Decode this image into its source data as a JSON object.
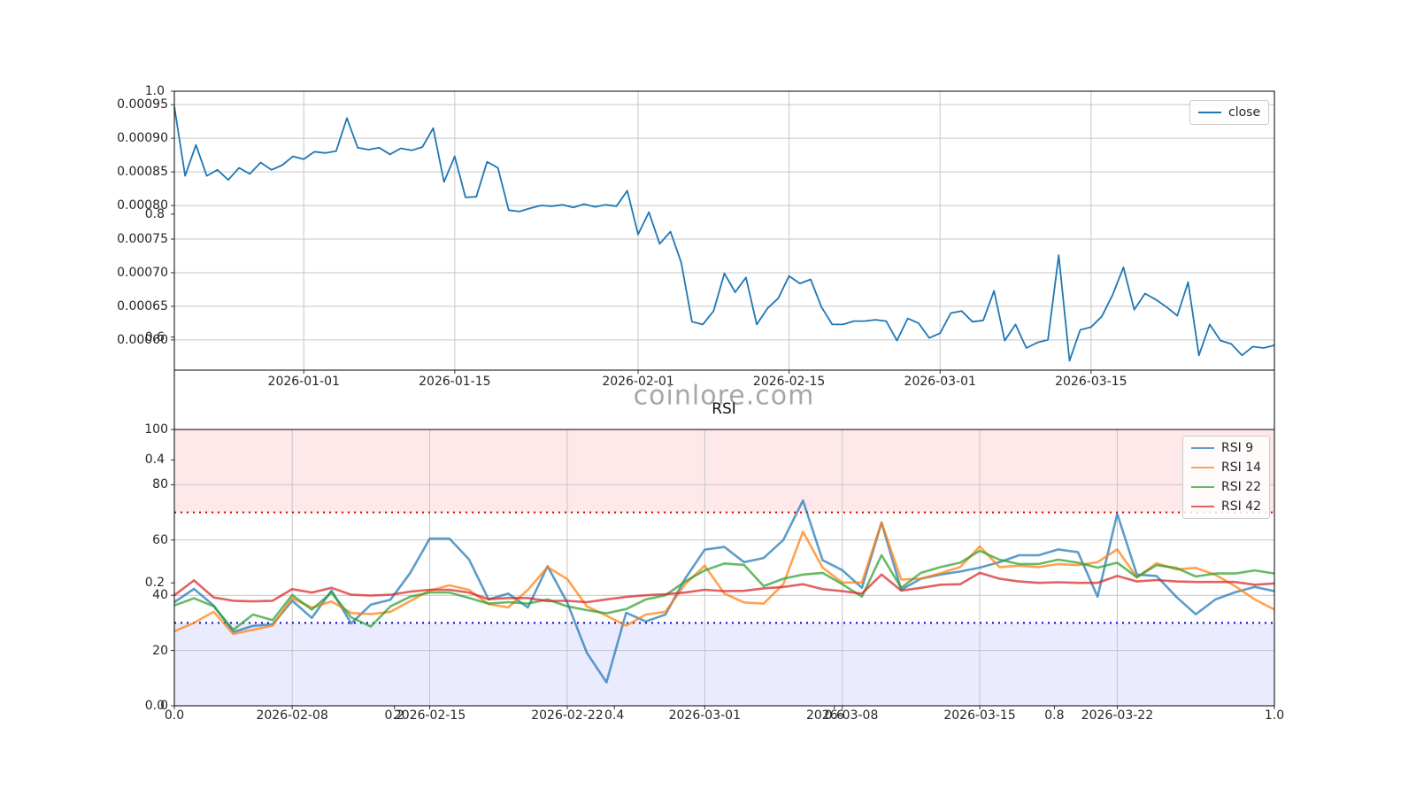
{
  "watermark": "coinlore.com",
  "overlay_axis": {
    "x_tick_labels": [
      "0.0",
      "0.2",
      "0.4",
      "0.6",
      "0.8",
      "1.0"
    ],
    "y_tick_labels": [
      "1.0",
      "0.8",
      "0.6",
      "0.4",
      "0.2",
      "0.0"
    ]
  },
  "chart_data": [
    {
      "type": "line",
      "title": "",
      "x_start": "2025-12-20",
      "x_interval": "daily",
      "x_tick_labels": [
        "2026-01-01",
        "2026-01-15",
        "2026-02-01",
        "2026-02-15",
        "2026-03-01",
        "2026-03-15"
      ],
      "x_tick_index": [
        12,
        26,
        43,
        57,
        71,
        85
      ],
      "y_tick_labels": [
        "0.00060",
        "0.00065",
        "0.00070",
        "0.00075",
        "0.00080",
        "0.00085",
        "0.00090",
        "0.00095"
      ],
      "y_tick_values": [
        0.0006,
        0.00065,
        0.0007,
        0.00075,
        0.0008,
        0.00085,
        0.0009,
        0.00095
      ],
      "ylim": [
        0.000555,
        0.00097
      ],
      "grid": true,
      "legend_position": "upper right",
      "series": [
        {
          "name": "close",
          "color": "#1f77b4",
          "opacity": 1,
          "width": 1.8,
          "values": [
            0.000947,
            0.000844,
            0.00089,
            0.000844,
            0.000853,
            0.000838,
            0.000856,
            0.000847,
            0.000864,
            0.000853,
            0.00086,
            0.000873,
            0.000869,
            0.00088,
            0.000878,
            0.000881,
            0.00093,
            0.000886,
            0.000883,
            0.000886,
            0.000876,
            0.000885,
            0.000882,
            0.000887,
            0.000915,
            0.000835,
            0.000873,
            0.000812,
            0.000813,
            0.000865,
            0.000856,
            0.000793,
            0.000791,
            0.000796,
            0.0008,
            0.000799,
            0.000801,
            0.000797,
            0.000802,
            0.000798,
            0.000801,
            0.000799,
            0.000822,
            0.000757,
            0.00079,
            0.000743,
            0.000761,
            0.000715,
            0.000627,
            0.000623,
            0.000643,
            0.000699,
            0.000671,
            0.000693,
            0.000623,
            0.000647,
            0.000662,
            0.000695,
            0.000684,
            0.00069,
            0.000649,
            0.000623,
            0.000623,
            0.000628,
            0.000628,
            0.00063,
            0.000628,
            0.000599,
            0.000632,
            0.000625,
            0.000603,
            0.00061,
            0.00064,
            0.000643,
            0.000627,
            0.000629,
            0.000673,
            0.000599,
            0.000623,
            0.000588,
            0.000596,
            0.0006,
            0.000726,
            0.000569,
            0.000615,
            0.000619,
            0.000635,
            0.000667,
            0.000708,
            0.000645,
            0.000669,
            0.00066,
            0.000649,
            0.000636,
            0.000686,
            0.000577,
            0.000623,
            0.000599,
            0.000594,
            0.000577,
            0.00059,
            0.000588,
            0.000592
          ]
        }
      ]
    },
    {
      "type": "line",
      "title": "RSI",
      "x_start": "2026-02-02",
      "x_interval": "daily",
      "x_tick_labels": [
        "2026-02-08",
        "2026-02-15",
        "2026-02-22",
        "2026-03-01",
        "2026-03-08",
        "2026-03-15",
        "2026-03-22"
      ],
      "x_tick_index": [
        6,
        13,
        20,
        27,
        34,
        41,
        48
      ],
      "y_tick_labels": [
        "0",
        "20",
        "40",
        "60",
        "80",
        "100"
      ],
      "y_tick_values": [
        0,
        20,
        40,
        60,
        80,
        100
      ],
      "ylim": [
        0,
        100
      ],
      "grid": true,
      "overbought_level": 70,
      "oversold_level": 30,
      "bands": [
        {
          "from": 70,
          "to": 100,
          "color": "rgba(255,30,45,0.10)"
        },
        {
          "from": 0,
          "to": 30,
          "color": "rgba(55,55,255,0.10)"
        }
      ],
      "hlines": [
        {
          "y": 70,
          "color": "#d40000"
        },
        {
          "y": 30,
          "color": "#0000cc"
        }
      ],
      "legend_position": "upper right",
      "series": [
        {
          "name": "RSI 9",
          "color": "#1f77b4",
          "opacity": 0.72,
          "width": 2.6,
          "values": [
            37.5,
            42.3,
            36.3,
            26.7,
            28.9,
            29.5,
            38,
            31.8,
            41.7,
            29.8,
            36.6,
            38.4,
            48,
            60.5,
            60.5,
            53,
            38.5,
            40.6,
            35.6,
            50.5,
            37.4,
            19.2,
            8.5,
            33.7,
            30.5,
            33,
            46,
            56.5,
            57.5,
            52,
            53.5,
            60,
            74.3,
            52.7,
            49.1,
            42.7,
            66.3,
            42,
            46,
            47.5,
            48.6,
            50,
            52,
            54.5,
            54.5,
            56.6,
            55.6,
            39.5,
            69.5,
            47.5,
            47,
            39.5,
            33.1,
            38.5,
            41.1,
            43,
            41.5
          ]
        },
        {
          "name": "RSI 14",
          "color": "#ff7f0e",
          "opacity": 0.72,
          "width": 2.6,
          "values": [
            27,
            30,
            34,
            26,
            27.5,
            29,
            38.9,
            35.5,
            37.8,
            33.6,
            33.2,
            34,
            37.9,
            41.7,
            43.6,
            42,
            36.8,
            35.6,
            42,
            50.2,
            45.9,
            36,
            32.6,
            29,
            33,
            34,
            44,
            50.7,
            40.6,
            37.4,
            37,
            44,
            63,
            50,
            44.6,
            44.6,
            66.3,
            45.7,
            46,
            48,
            50.2,
            57.7,
            50.2,
            50.7,
            50.2,
            51.3,
            50.9,
            52,
            56.6,
            46.5,
            51.6,
            49.4,
            49.9,
            47.4,
            43.3,
            38.5,
            34.8
          ]
        },
        {
          "name": "RSI 22",
          "color": "#2ca02c",
          "opacity": 0.72,
          "width": 2.6,
          "values": [
            36.3,
            38.9,
            36,
            27.5,
            33,
            31,
            40.1,
            34.8,
            41,
            32,
            28.7,
            36,
            39.5,
            41,
            41,
            39,
            37,
            37.5,
            37,
            38.5,
            36,
            34.6,
            33.5,
            35,
            38.5,
            40,
            45,
            49,
            51.5,
            51,
            43.3,
            46,
            47.5,
            48.1,
            44,
            39.5,
            54.5,
            42.7,
            48.1,
            50.2,
            51.8,
            56.1,
            52.9,
            51.3,
            51.3,
            52.9,
            51.8,
            50,
            51.8,
            46.5,
            50.9,
            49.9,
            46.8,
            47.9,
            47.9,
            49,
            47.9
          ]
        },
        {
          "name": "RSI 42",
          "color": "#d62728",
          "opacity": 0.72,
          "width": 2.6,
          "values": [
            40,
            45.4,
            39.2,
            38,
            37.8,
            38,
            42.2,
            41,
            42.7,
            40.2,
            39.9,
            40.2,
            41.3,
            42,
            42,
            41,
            38.6,
            39,
            39,
            37.9,
            38,
            37.5,
            38.5,
            39.4,
            40,
            40.4,
            41,
            42,
            41.5,
            41.6,
            42.5,
            43,
            44,
            42.2,
            41.5,
            40.6,
            47.5,
            41.7,
            42.7,
            43.8,
            44,
            48.1,
            46,
            45,
            44.5,
            44.7,
            44.5,
            44.5,
            47,
            45,
            45.5,
            45,
            44.8,
            44.8,
            44.8,
            43.8,
            44.3
          ]
        }
      ]
    }
  ]
}
